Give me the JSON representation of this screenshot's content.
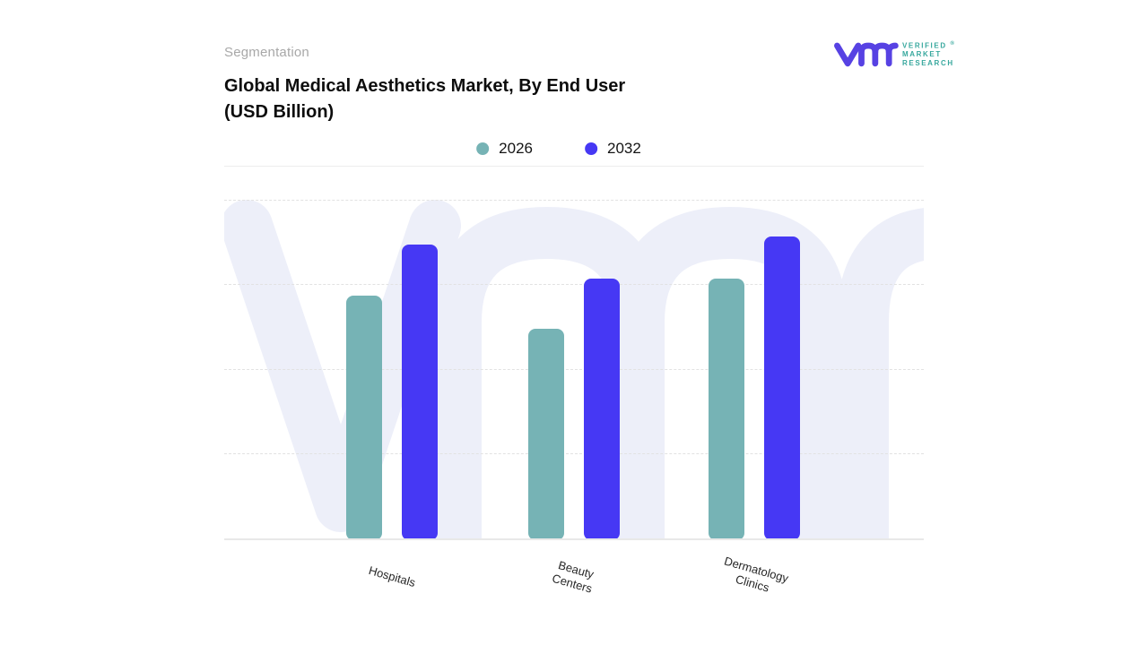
{
  "header": {
    "eyebrow": "Segmentation",
    "title_line1": "Global Medical Aesthetics Market, By End User",
    "title_line2": "(USD Billion)"
  },
  "brand": {
    "glyph": "vmr-monogram",
    "line1": "VERIFIED",
    "registered_mark": "®",
    "line2": "MARKET",
    "line3": "RESEARCH",
    "glyph_color": "#5742e3",
    "text_color": "#38a89e"
  },
  "legend": {
    "items": [
      {
        "label": "2026",
        "color": "#76b3b5"
      },
      {
        "label": "2032",
        "color": "#4638f4"
      }
    ]
  },
  "chart_data": {
    "type": "bar",
    "title": "Global Medical Aesthetics Market, By End User (USD Billion)",
    "categories": [
      "Hospitals",
      "Beauty Centers",
      "Dermatology Clinics"
    ],
    "category_lines": [
      [
        "Hospitals"
      ],
      [
        "Beauty",
        "Centers"
      ],
      [
        "Dermatology",
        "Clinics"
      ]
    ],
    "series": [
      {
        "name": "2026",
        "color": "#76b3b5",
        "values": [
          2.9,
          2.5,
          3.1
        ]
      },
      {
        "name": "2032",
        "color": "#4638f4",
        "values": [
          3.5,
          3.1,
          3.6
        ]
      }
    ],
    "xlabel": "",
    "ylabel": "USD Billion",
    "ylim": [
      0,
      4
    ],
    "gridlines": [
      1,
      2,
      3,
      4
    ],
    "grid_style": "dashed",
    "y_axis_labels_visible": false,
    "legend_position": "top-center",
    "note": "No numeric axis labels shown; values estimated from unlabeled gridlines"
  },
  "colors": {
    "bar_2026": "#76b3b5",
    "bar_2032": "#4638f4",
    "watermark": "#edeff9",
    "gridline": "#e2e2e2",
    "axis_line": "#e8e8e8",
    "title_text": "#0d0d0d",
    "eyebrow_text": "#a8a8a8"
  }
}
